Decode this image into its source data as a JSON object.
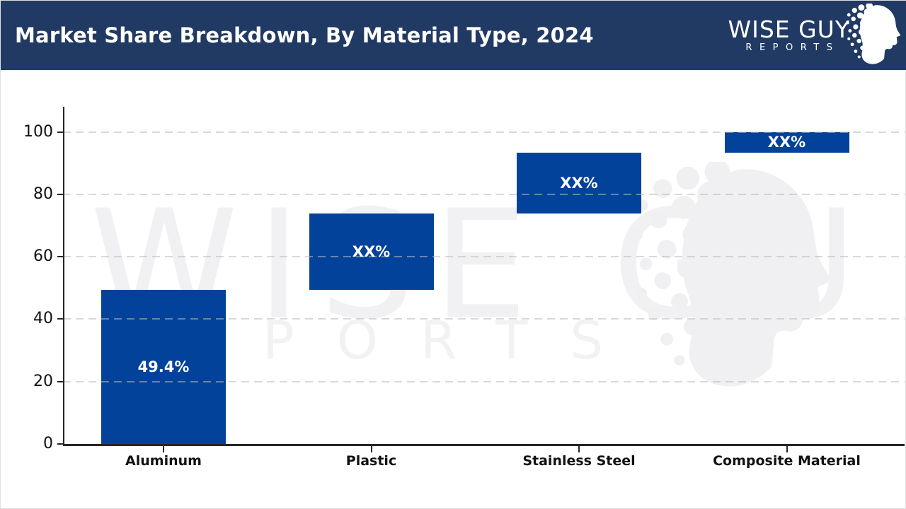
{
  "header": {
    "title": "Market Share Breakdown, By Material Type, 2024",
    "bg_color": "#213a64",
    "logo": {
      "line1": "WISE GUY",
      "line2": "REPORTS"
    }
  },
  "watermark": {
    "line1": "WISE GU",
    "line2": "REPORTS"
  },
  "colors": {
    "bar_blue": "#03429a",
    "header_navy": "#213a64",
    "axis_dark": "#262626",
    "gridline_gray": "#dcdcdc",
    "watermark_gray": "#f1f1f3",
    "label_white": "#ffffff"
  },
  "chart_data": {
    "type": "bar",
    "subtype": "waterfall",
    "title": "Market Share Breakdown, By Material Type, 2024",
    "categories": [
      "Aluminum",
      "Plastic",
      "Stainless Steel",
      "Composite Material"
    ],
    "segments": [
      {
        "category": "Aluminum",
        "start": 0,
        "end": 49.4,
        "label": "49.4%"
      },
      {
        "category": "Plastic",
        "start": 49.4,
        "end": 73.8,
        "label": "XX%"
      },
      {
        "category": "Stainless Steel",
        "start": 73.8,
        "end": 93.4,
        "label": "XX%"
      },
      {
        "category": "Composite Material",
        "start": 93.4,
        "end": 100,
        "label": "XX%"
      }
    ],
    "y_ticks": [
      0,
      20,
      40,
      60,
      80,
      100
    ],
    "ylim": [
      0,
      105
    ],
    "xlabel": "",
    "ylabel": "",
    "grid": true,
    "grid_style": "dashed",
    "legend": false,
    "bar_color": "#03429a",
    "value_label_color": "#ffffff"
  }
}
